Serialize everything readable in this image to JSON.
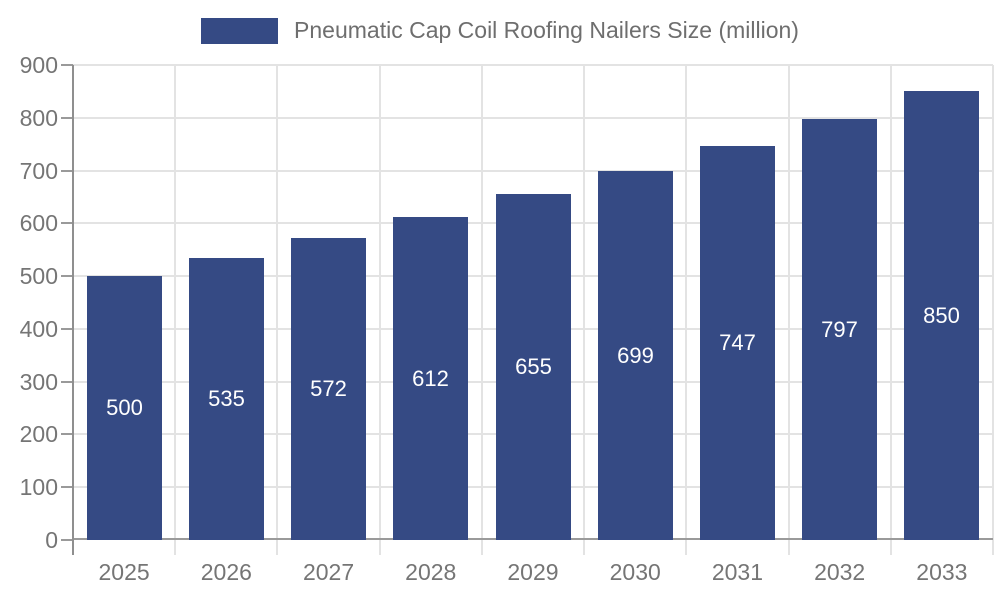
{
  "colors": {
    "bar": "#354A84",
    "grid": "#E3E3E3",
    "axis": "#9A9A9A",
    "spine": "#8F8F8F",
    "tick_label": "#757575",
    "legend_text": "#6E6E6E",
    "value_label": "#FFFFFF",
    "background": "#FFFFFF"
  },
  "legend": {
    "label": "Pneumatic Cap Coil Roofing Nailers Size (million)",
    "swatch": "navy-rectangle"
  },
  "chart_data": {
    "type": "bar",
    "title": "Pneumatic Cap Coil Roofing Nailers Size (million)",
    "categories": [
      "2025",
      "2026",
      "2027",
      "2028",
      "2029",
      "2030",
      "2031",
      "2032",
      "2033"
    ],
    "values": [
      500,
      535,
      572,
      612,
      655,
      699,
      747,
      797,
      850
    ],
    "value_labels": [
      "500",
      "535",
      "572",
      "612",
      "655",
      "699",
      "747",
      "797",
      "850"
    ],
    "xlabel": "",
    "ylabel": "",
    "ylim": [
      0,
      900
    ],
    "yticks": [
      0,
      100,
      200,
      300,
      400,
      500,
      600,
      700,
      800,
      900
    ],
    "grid": "horizontal gridlines at each y tick, vertical gridlines at category boundaries",
    "legend_position": "top-center",
    "value_label_style": "white text centered vertically inside each bar"
  }
}
